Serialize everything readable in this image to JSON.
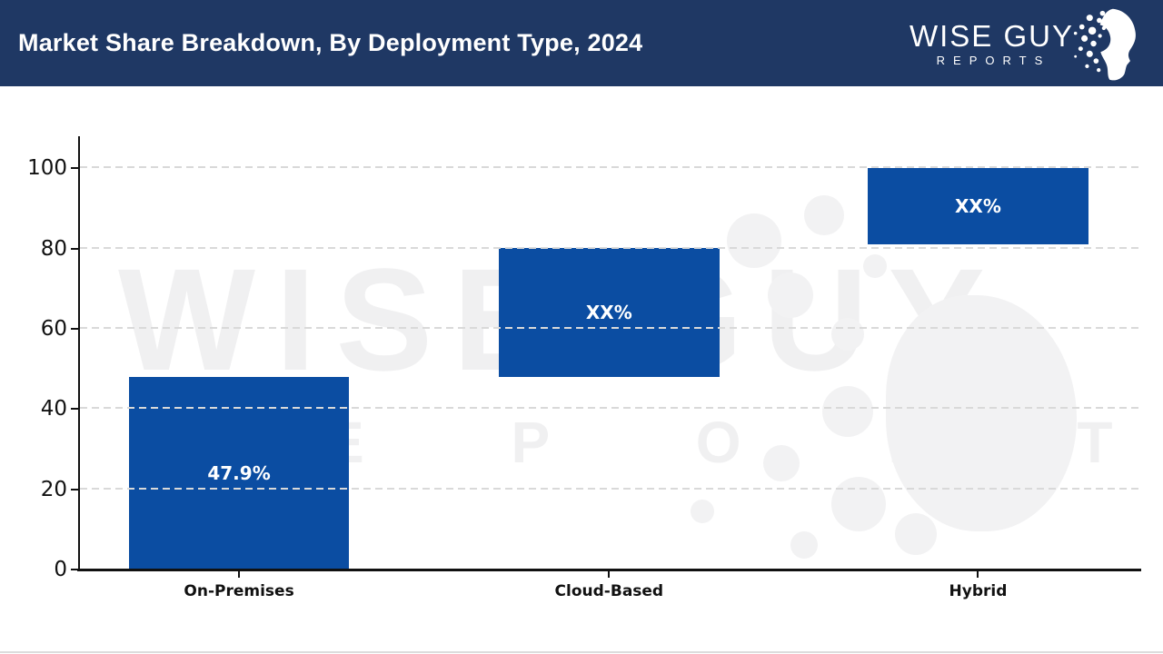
{
  "header": {
    "title": "Market Share Breakdown, By Deployment Type, 2024",
    "background_color": "#1f3864",
    "brand": {
      "line1": "WISE GUY",
      "line2": "REPORTS"
    }
  },
  "watermark": {
    "line1": "WISE GUY",
    "line2": "REPORTS"
  },
  "chart_data": {
    "type": "bar",
    "subtype": "waterfall",
    "title": "Market Share Breakdown, By Deployment Type, 2024",
    "categories": [
      "On-Premises",
      "Cloud-Based",
      "Hybrid"
    ],
    "segments": [
      {
        "category": "On-Premises",
        "start": 0,
        "end": 47.9,
        "label": "47.9%"
      },
      {
        "category": "Cloud-Based",
        "start": 47.9,
        "end": 80.1,
        "label": "XX%"
      },
      {
        "category": "Hybrid",
        "start": 81,
        "end": 100,
        "label": "XX%"
      }
    ],
    "y_ticks": [
      0,
      20,
      40,
      60,
      80,
      100
    ],
    "ylim": [
      0,
      107.5
    ],
    "xlabel": "",
    "ylabel": "",
    "legend": "none",
    "grid": true,
    "grid_style": "dashed",
    "grid_color": "#d9d9d9",
    "bar_color": "#0b4da2",
    "bar_label_color": "#ffffff",
    "category_centers_pct": [
      15.0,
      49.9,
      84.7
    ],
    "bar_width_pct": 20.8
  }
}
